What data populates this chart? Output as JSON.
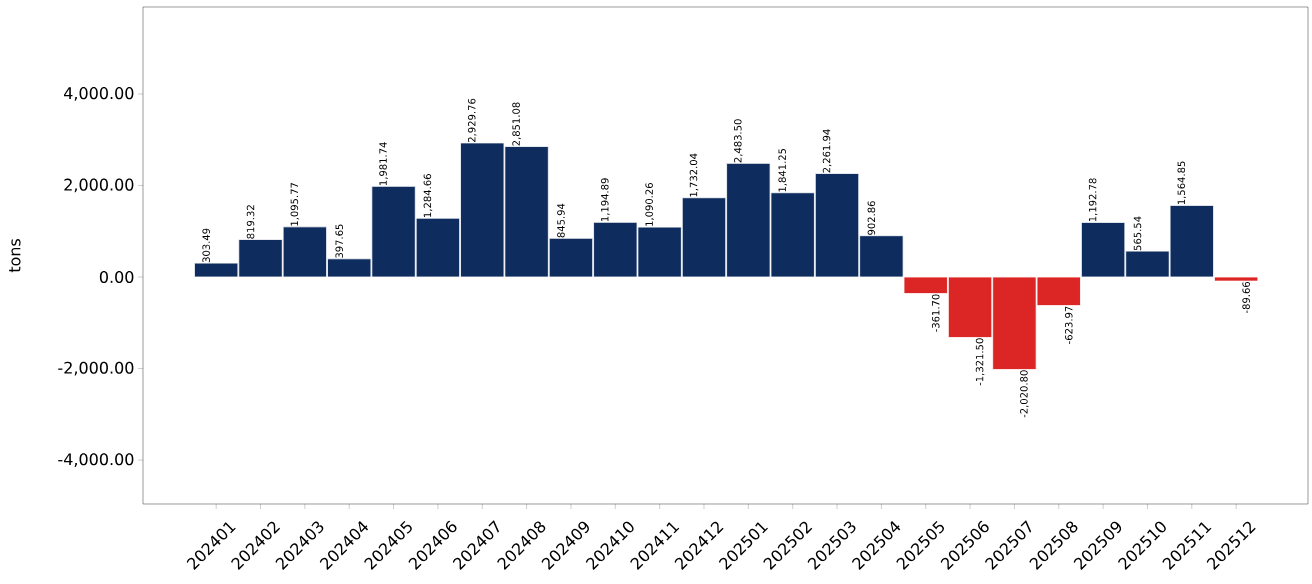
{
  "chart_data": {
    "type": "bar",
    "ylabel": "tons",
    "categories": [
      "202401",
      "202402",
      "202403",
      "202404",
      "202405",
      "202406",
      "202407",
      "202408",
      "202409",
      "202410",
      "202411",
      "202412",
      "202501",
      "202502",
      "202503",
      "202504",
      "202505",
      "202506",
      "202507",
      "202508",
      "202509",
      "202510",
      "202511",
      "202512"
    ],
    "values": [
      303.49,
      819.32,
      1095.77,
      397.65,
      1981.74,
      1284.66,
      2929.76,
      2851.08,
      845.94,
      1194.89,
      1090.26,
      1732.04,
      2483.5,
      1841.25,
      2261.94,
      902.86,
      -361.7,
      -1321.5,
      -2020.8,
      -623.97,
      1192.78,
      565.54,
      1564.85,
      -89.66
    ],
    "value_labels": [
      "303.49",
      "819.32",
      "1,095.77",
      "397.65",
      "1,981.74",
      "1,284.66",
      "2,929.76",
      "2,851.08",
      "845.94",
      "1,194.89",
      "1,090.26",
      "1,732.04",
      "2,483.50",
      "1,841.25",
      "2,261.94",
      "902.86",
      "-361.70",
      "-1,321.50",
      "-2,020.80",
      "-623.97",
      "1,192.78",
      "565.54",
      "1,564.85",
      "-89.66"
    ],
    "colors": [
      "#0e2d5e",
      "#0e2d5e",
      "#0e2d5e",
      "#0e2d5e",
      "#0e2d5e",
      "#0e2d5e",
      "#0e2d5e",
      "#0e2d5e",
      "#0e2d5e",
      "#0e2d5e",
      "#0e2d5e",
      "#0e2d5e",
      "#0e2d5e",
      "#0e2d5e",
      "#0e2d5e",
      "#0e2d5e",
      "#dc2626",
      "#dc2626",
      "#dc2626",
      "#dc2626",
      "#0e2d5e",
      "#0e2d5e",
      "#0e2d5e",
      "#dc2626"
    ],
    "ylim": [
      -4960,
      5900
    ],
    "yticks": [
      {
        "value": -4000,
        "label": "-4,000.00"
      },
      {
        "value": -2000,
        "label": "-2,000.00"
      },
      {
        "value": 0,
        "label": "0.00"
      },
      {
        "value": 2000,
        "label": "2,000.00"
      },
      {
        "value": 4000,
        "label": "4,000.00"
      }
    ]
  }
}
